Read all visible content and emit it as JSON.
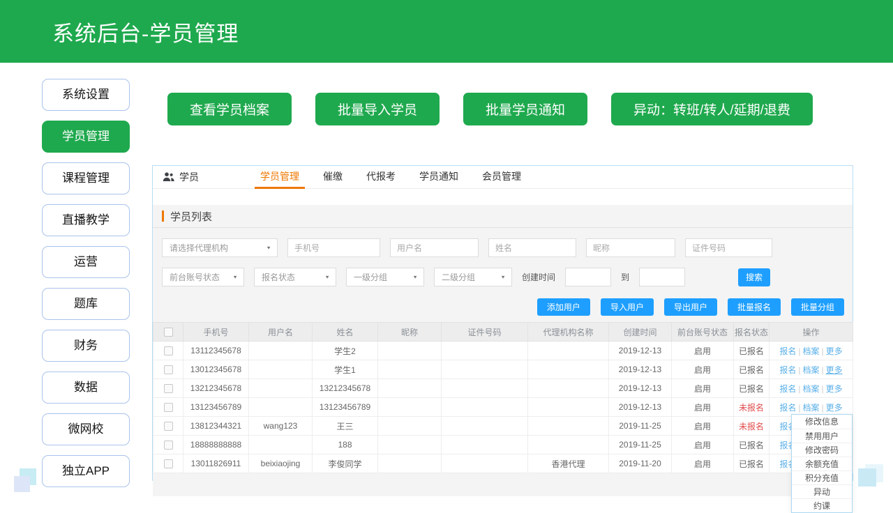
{
  "header": {
    "title": "系统后台-学员管理"
  },
  "sidebar": {
    "items": [
      {
        "label": "系统设置",
        "active": false
      },
      {
        "label": "学员管理",
        "active": true
      },
      {
        "label": "课程管理",
        "active": false
      },
      {
        "label": "直播教学",
        "active": false
      },
      {
        "label": "运营",
        "active": false
      },
      {
        "label": "题库",
        "active": false
      },
      {
        "label": "财务",
        "active": false
      },
      {
        "label": "数据",
        "active": false
      },
      {
        "label": "微网校",
        "active": false
      },
      {
        "label": "独立APP",
        "active": false
      }
    ]
  },
  "quick_actions": [
    {
      "label": "查看学员档案"
    },
    {
      "label": "批量导入学员"
    },
    {
      "label": "批量学员通知"
    },
    {
      "label": "异动：转班/转人/延期/退费"
    }
  ],
  "panel": {
    "module_label": "学员",
    "tabs": [
      {
        "label": "学员管理",
        "active": true
      },
      {
        "label": "催缴",
        "active": false
      },
      {
        "label": "代报考",
        "active": false
      },
      {
        "label": "学员通知",
        "active": false
      },
      {
        "label": "会员管理",
        "active": false
      }
    ],
    "section_title": "学员列表",
    "filters": {
      "agency_placeholder": "请选择代理机构",
      "phone_placeholder": "手机号",
      "username_placeholder": "用户名",
      "name_placeholder": "姓名",
      "nickname_placeholder": "昵称",
      "id_placeholder": "证件号码",
      "account_status_placeholder": "前台账号状态",
      "signup_status_placeholder": "报名状态",
      "group1_placeholder": "一级分组",
      "group2_placeholder": "二级分组",
      "created_label": "创建时间",
      "to_label": "到",
      "search_label": "搜索"
    },
    "actions": [
      {
        "label": "添加用户"
      },
      {
        "label": "导入用户"
      },
      {
        "label": "导出用户"
      },
      {
        "label": "批量报名"
      },
      {
        "label": "批量分组"
      }
    ],
    "table": {
      "columns": [
        "手机号",
        "用户名",
        "姓名",
        "昵称",
        "证件号码",
        "代理机构名称",
        "创建时间",
        "前台账号状态",
        "报名状态",
        "操作"
      ],
      "op_links": [
        "报名",
        "档案",
        "更多"
      ],
      "rows": [
        {
          "phone": "13112345678",
          "username": "",
          "name": "学生2",
          "nickname": "",
          "id_number": "",
          "agency": "",
          "created": "2019-12-13",
          "account_status": "启用",
          "signup_status": "已报名",
          "signup_alert": false,
          "more_open": false
        },
        {
          "phone": "13012345678",
          "username": "",
          "name": "学生1",
          "nickname": "",
          "id_number": "",
          "agency": "",
          "created": "2019-12-13",
          "account_status": "启用",
          "signup_status": "已报名",
          "signup_alert": false,
          "more_open": true
        },
        {
          "phone": "13212345678",
          "username": "",
          "name": "13212345678",
          "nickname": "",
          "id_number": "",
          "agency": "",
          "created": "2019-12-13",
          "account_status": "启用",
          "signup_status": "已报名",
          "signup_alert": false,
          "more_open": false
        },
        {
          "phone": "13123456789",
          "username": "",
          "name": "13123456789",
          "nickname": "",
          "id_number": "",
          "agency": "",
          "created": "2019-12-13",
          "account_status": "启用",
          "signup_status": "未报名",
          "signup_alert": true,
          "more_open": false
        },
        {
          "phone": "13812344321",
          "username": "wang123",
          "name": "王三",
          "nickname": "",
          "id_number": "",
          "agency": "",
          "created": "2019-11-25",
          "account_status": "启用",
          "signup_status": "未报名",
          "signup_alert": true,
          "more_open": false
        },
        {
          "phone": "18888888888",
          "username": "",
          "name": "188",
          "nickname": "",
          "id_number": "",
          "agency": "",
          "created": "2019-11-25",
          "account_status": "启用",
          "signup_status": "已报名",
          "signup_alert": false,
          "more_open": false
        },
        {
          "phone": "13011826911",
          "username": "beixiaojing",
          "name": "李俊同学",
          "nickname": "",
          "id_number": "",
          "agency": "香港代理",
          "created": "2019-11-20",
          "account_status": "启用",
          "signup_status": "已报名",
          "signup_alert": false,
          "more_open": false
        }
      ]
    },
    "more_menu": [
      {
        "label": "修改信息"
      },
      {
        "label": "禁用用户"
      },
      {
        "label": "修改密码"
      },
      {
        "label": "余额充值"
      },
      {
        "label": "积分充值"
      },
      {
        "label": "异动"
      },
      {
        "label": "约课"
      }
    ]
  },
  "colors": {
    "brand_green": "#1fa94e",
    "action_blue": "#1e9fff",
    "link_blue": "#5bb0e8",
    "tab_orange": "#ee7700",
    "alert_red": "#e14c4c"
  }
}
